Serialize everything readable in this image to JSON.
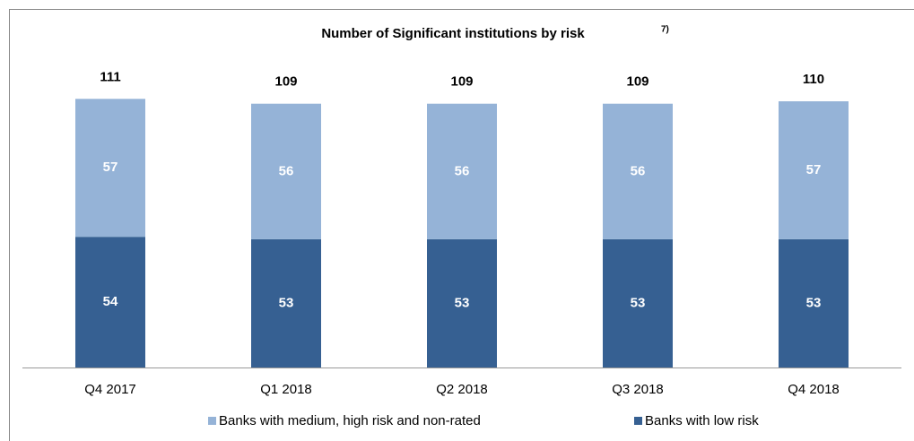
{
  "chart_data": {
    "type": "stacked-bar",
    "title": "Number of Significant institutions by risk",
    "title_note": "7)",
    "categories": [
      "Q4 2017",
      "Q1 2018",
      "Q2 2018",
      "Q3 2018",
      "Q4 2018"
    ],
    "series": [
      {
        "name": "Banks with medium, high risk and non-rated",
        "color": "#95b3d7",
        "values": [
          57,
          56,
          56,
          56,
          57
        ]
      },
      {
        "name": "Banks with low risk",
        "color": "#366092",
        "values": [
          54,
          53,
          53,
          53,
          53
        ]
      }
    ],
    "totals": [
      111,
      109,
      109,
      109,
      110
    ]
  }
}
